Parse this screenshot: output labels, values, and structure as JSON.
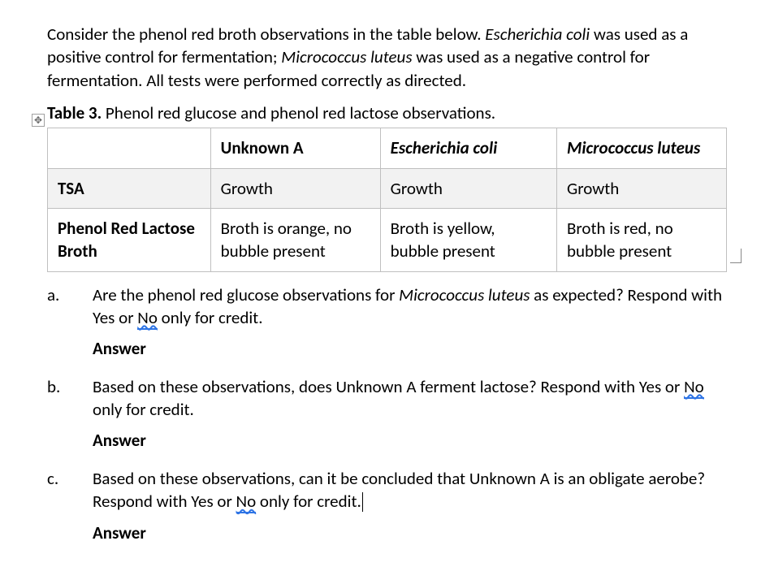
{
  "intro": {
    "p1_a": "Consider the phenol red broth observations in the table below. ",
    "p1_b": "Escherichia coli",
    "p1_c": " was used as a positive control for fermentation; ",
    "p1_d": "Micrococcus luteus",
    "p1_e": " was used as a negative control for fermentation. All tests were performed correctly as directed."
  },
  "table": {
    "caption_bold": "Table 3.",
    "caption_rest": " Phenol red glucose and phenol red lactose observations.",
    "move_handle_glyph": "✥",
    "headers": {
      "c0": "",
      "c1": "Unknown A",
      "c2": "Escherichia coli",
      "c3": "Micrococcus luteus"
    },
    "rows": [
      {
        "label": "TSA",
        "c1": "Growth",
        "c2": "Growth",
        "c3": "Growth"
      },
      {
        "label": "Phenol Red Lactose Broth",
        "c1": "Broth is orange, no bubble present",
        "c2": "Broth is yellow, bubble present",
        "c3": "Broth is red, no bubble present"
      }
    ]
  },
  "questions": {
    "a": {
      "marker": "a.",
      "t1": "Are the phenol red glucose observations for ",
      "italic": "Micrococcus luteus",
      "t2": " as expected? Respond with Yes or ",
      "no": "No",
      "t3": " only for credit.",
      "answer_label": "Answer"
    },
    "b": {
      "marker": "b.",
      "t1": "Based on these observations, does Unknown A ferment lactose? Respond with Yes or ",
      "no": "No",
      "t2": " only for credit.",
      "answer_label": "Answer"
    },
    "c": {
      "marker": "c.",
      "t1": "Based on these observations, can it be concluded that Unknown A is an obligate aerobe? Respond with Yes or ",
      "no": "No",
      "t2": " only for credit.",
      "answer_label": "Answer"
    }
  }
}
